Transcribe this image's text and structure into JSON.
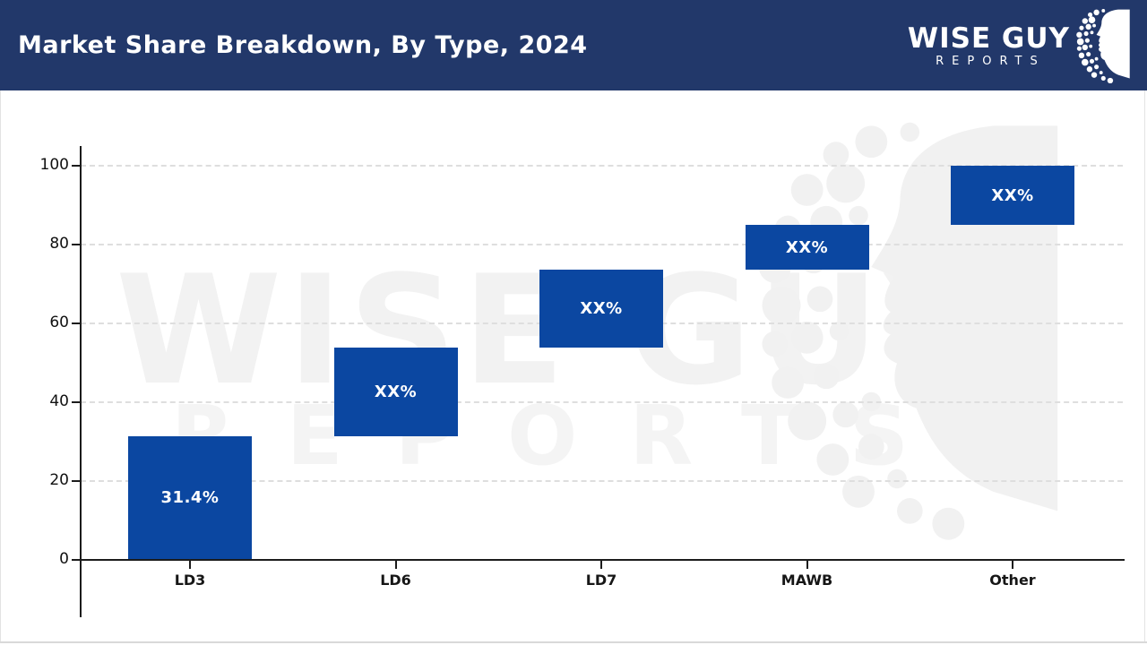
{
  "header": {
    "title": "Market Share Breakdown, By Type, 2024",
    "logo": {
      "line1": "WISE GUY",
      "line2": "REPORTS"
    }
  },
  "watermark": {
    "line1": "WISE GUY",
    "line2": "REPORTS"
  },
  "colors": {
    "header_bg": "#22386a",
    "bar": "#0b47a1",
    "bar_label": "#ffffff",
    "grid": "#dedede",
    "axis": "#1c1c1c",
    "watermark": "#f1f1f1"
  },
  "chart_data": {
    "type": "bar",
    "subtype": "waterfall",
    "title": "Market Share Breakdown, By Type, 2024",
    "categories": [
      "LD3",
      "LD6",
      "LD7",
      "MAWB",
      "Other"
    ],
    "segments": [
      {
        "category": "LD3",
        "start": 0,
        "end": 31.4,
        "label": "31.4%"
      },
      {
        "category": "LD6",
        "start": 31.4,
        "end": 53.8,
        "label": "XX%"
      },
      {
        "category": "LD7",
        "start": 53.8,
        "end": 73.7,
        "label": "XX%"
      },
      {
        "category": "MAWB",
        "start": 73.7,
        "end": 84.9,
        "label": "XX%"
      },
      {
        "category": "Other",
        "start": 84.9,
        "end": 100,
        "label": "XX%"
      }
    ],
    "xlabel": "",
    "ylabel": "",
    "ylim": [
      0,
      100
    ],
    "yticks": [
      0,
      20,
      40,
      60,
      80,
      100
    ],
    "grid": true,
    "legend": "none",
    "bar_color": "#0b47a1",
    "bar_label_color": "#ffffff"
  }
}
